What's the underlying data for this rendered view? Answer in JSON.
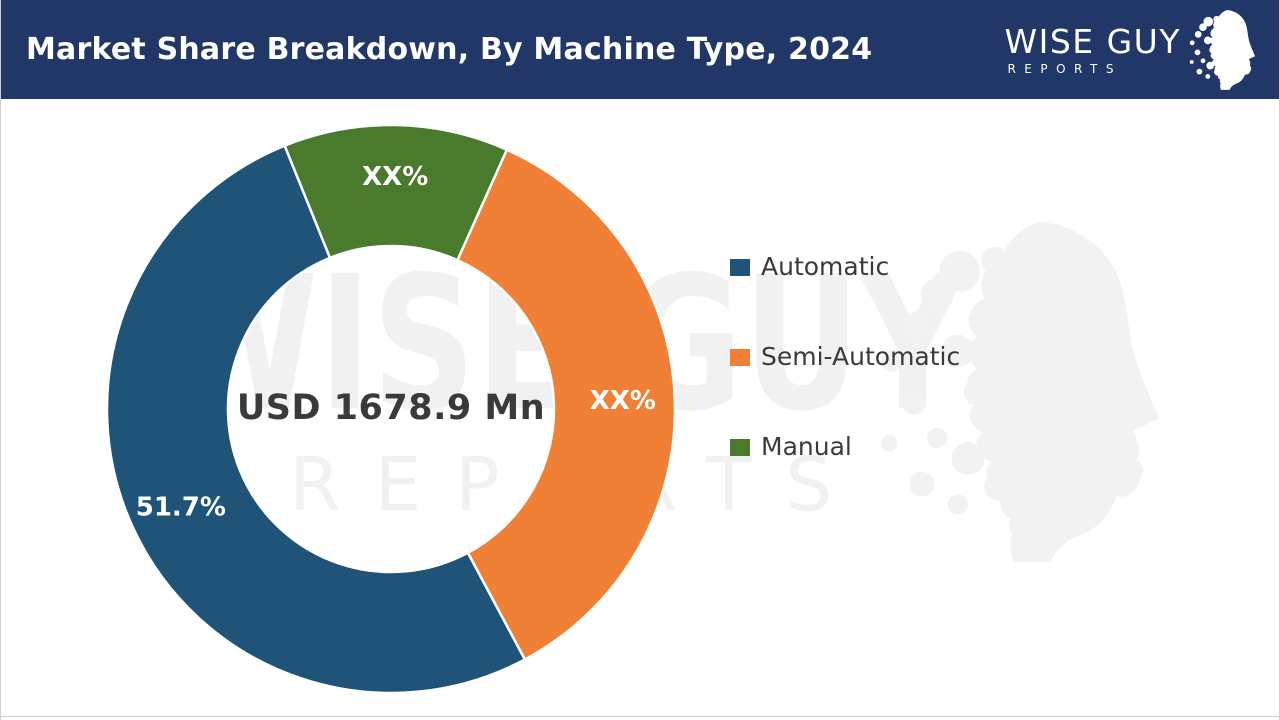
{
  "header": {
    "title": "Market Share Breakdown, By Machine Type, 2024",
    "logo": {
      "line1": "WISE GUY",
      "line2": "REPORTS"
    }
  },
  "watermark": {
    "line1": "WISE GUY",
    "line2": "REPORTS"
  },
  "chart_data": {
    "type": "pie",
    "subtype": "donut",
    "title": "Market Share Breakdown, By Machine Type, 2024",
    "center_label": "USD 1678.9 Mn",
    "start_angle_deg": 112,
    "direction": "clockwise",
    "inner_radius_ratio": 0.574,
    "slices": [
      {
        "name": "Manual",
        "value_pct": 12.8,
        "label": "XX%",
        "color": "#4a7a2c"
      },
      {
        "name": "Semi-Automatic",
        "value_pct": 35.5,
        "label": "XX%",
        "color": "#ef8035"
      },
      {
        "name": "Automatic",
        "value_pct": 51.7,
        "label": "51.7%",
        "color": "#1f5478"
      }
    ],
    "legend": {
      "position": "right",
      "items": [
        {
          "label": "Automatic",
          "color": "#1f5478"
        },
        {
          "label": "Semi-Automatic",
          "color": "#ef8035"
        },
        {
          "label": "Manual",
          "color": "#4a7a2c"
        }
      ]
    }
  },
  "colors": {
    "header_bg": "#213768",
    "automatic": "#1f5478",
    "semi_automatic": "#ef8035",
    "manual": "#4a7a2c",
    "center_text": "#3a3a3a",
    "legend_text": "#3a3a3a",
    "watermark": "#f1f1f1"
  }
}
